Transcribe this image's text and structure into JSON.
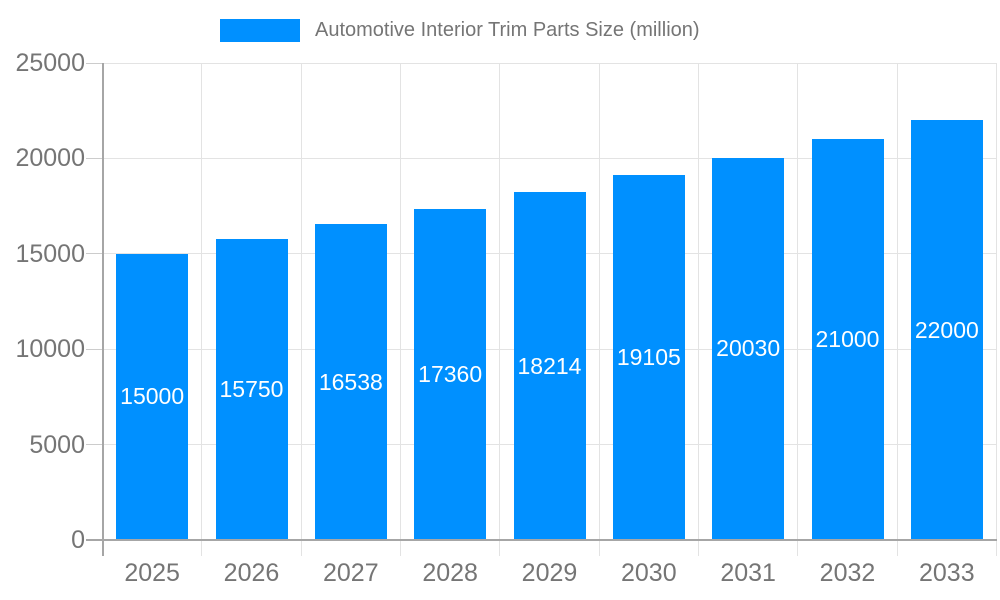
{
  "legend": {
    "label": "Automotive Interior Trim Parts Size (million)"
  },
  "chart_data": {
    "type": "bar",
    "title": "Automotive Interior Trim Parts Size (million)",
    "categories": [
      "2025",
      "2026",
      "2027",
      "2028",
      "2029",
      "2030",
      "2031",
      "2032",
      "2033"
    ],
    "values": [
      15000,
      15750,
      16538,
      17360,
      18214,
      19105,
      20030,
      21000,
      22000
    ],
    "xlabel": "",
    "ylabel": "",
    "ylim": [
      0,
      25000
    ],
    "yticks": [
      0,
      5000,
      10000,
      15000,
      20000,
      25000
    ],
    "grid": true,
    "legend_position": "top",
    "bar_color": "#0090FF",
    "bar_label_color": "#ffffff",
    "axis_text_color": "#757575",
    "axis_line_color": "#a6a6a6",
    "gridline_color": "#e3e3e3",
    "tick_color": "#cccccc"
  }
}
